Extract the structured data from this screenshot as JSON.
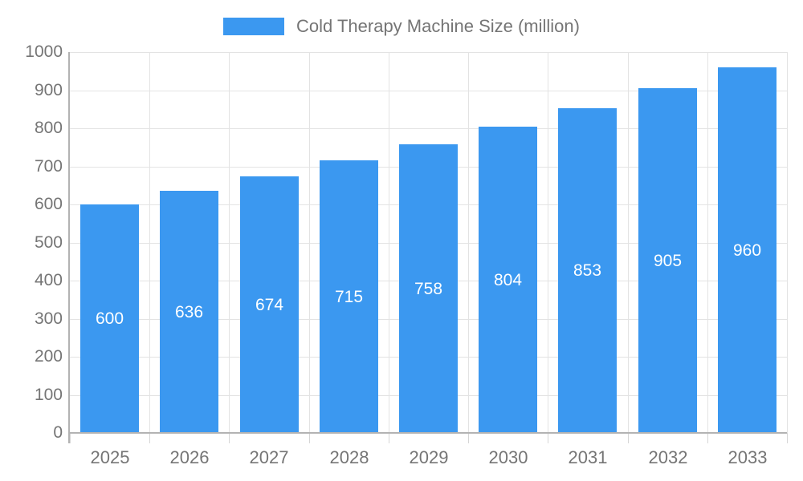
{
  "chart_data": {
    "type": "bar",
    "title": "",
    "categories": [
      "2025",
      "2026",
      "2027",
      "2028",
      "2029",
      "2030",
      "2031",
      "2032",
      "2033"
    ],
    "series": [
      {
        "name": "Cold Therapy Machine Size (million)",
        "values": [
          600,
          636,
          674,
          715,
          758,
          804,
          853,
          905,
          960
        ]
      }
    ],
    "xlabel": "",
    "ylabel": "",
    "ylim": [
      0,
      1000
    ],
    "y_ticks": [
      0,
      100,
      200,
      300,
      400,
      500,
      600,
      700,
      800,
      900,
      1000
    ],
    "grid": true,
    "legend_position": "top",
    "value_labels": "inside-center",
    "colors": {
      "bar": "#3B98F0",
      "value_label": "#FFFFFF",
      "axis_text": "#757575",
      "gridline": "#E3E3E3",
      "tick": "#D6D6D6",
      "axis_line": "#B3B3B3",
      "background": "#FFFFFF"
    }
  }
}
